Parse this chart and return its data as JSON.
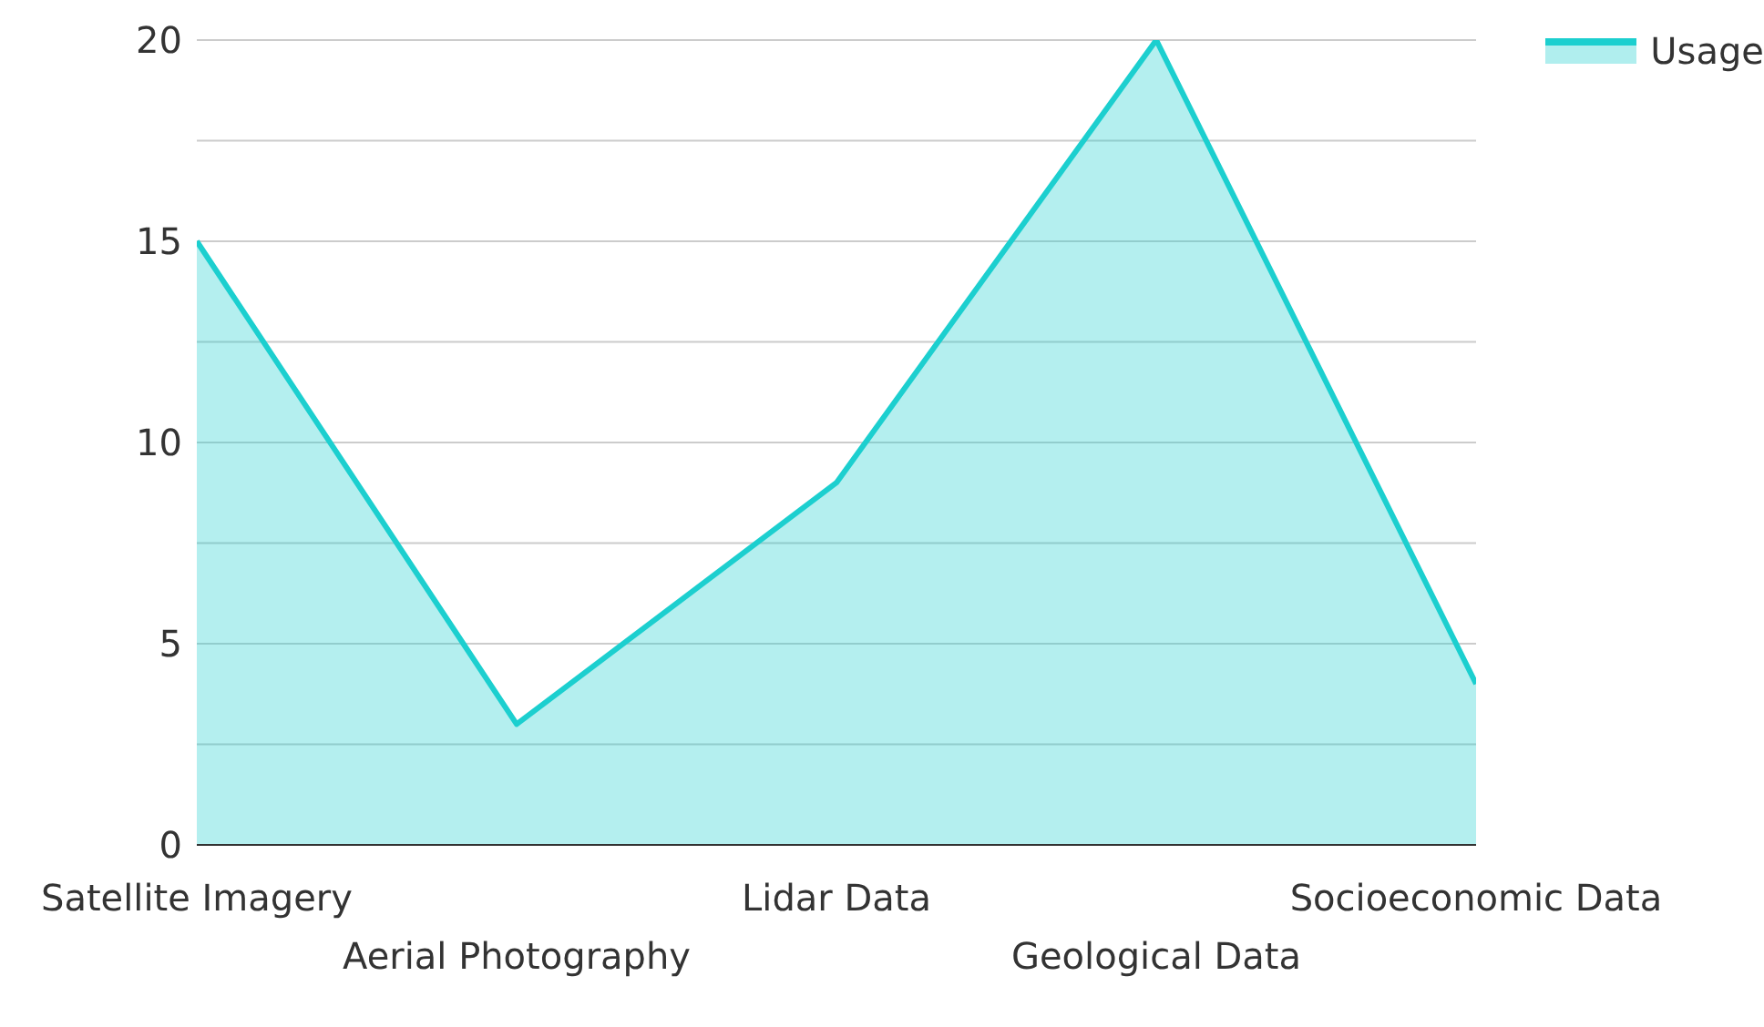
{
  "chart_data": {
    "type": "area",
    "categories": [
      "Satellite Imagery",
      "Aerial Photography",
      "Lidar Data",
      "Geological Data",
      "Socioeconomic Data"
    ],
    "series": [
      {
        "name": "Usage",
        "color": "#1ccfcf",
        "values": [
          15,
          3,
          9,
          20,
          4
        ]
      }
    ],
    "ylim": [
      0,
      20
    ],
    "yticks": [
      0,
      {
        "value": 2.5,
        "label": null
      },
      5,
      {
        "value": 7.5,
        "label": null
      },
      10,
      {
        "value": 12.5,
        "label": null
      },
      15,
      {
        "value": 17.5,
        "label": null
      },
      20
    ],
    "grid": "y",
    "legend": "top right"
  }
}
